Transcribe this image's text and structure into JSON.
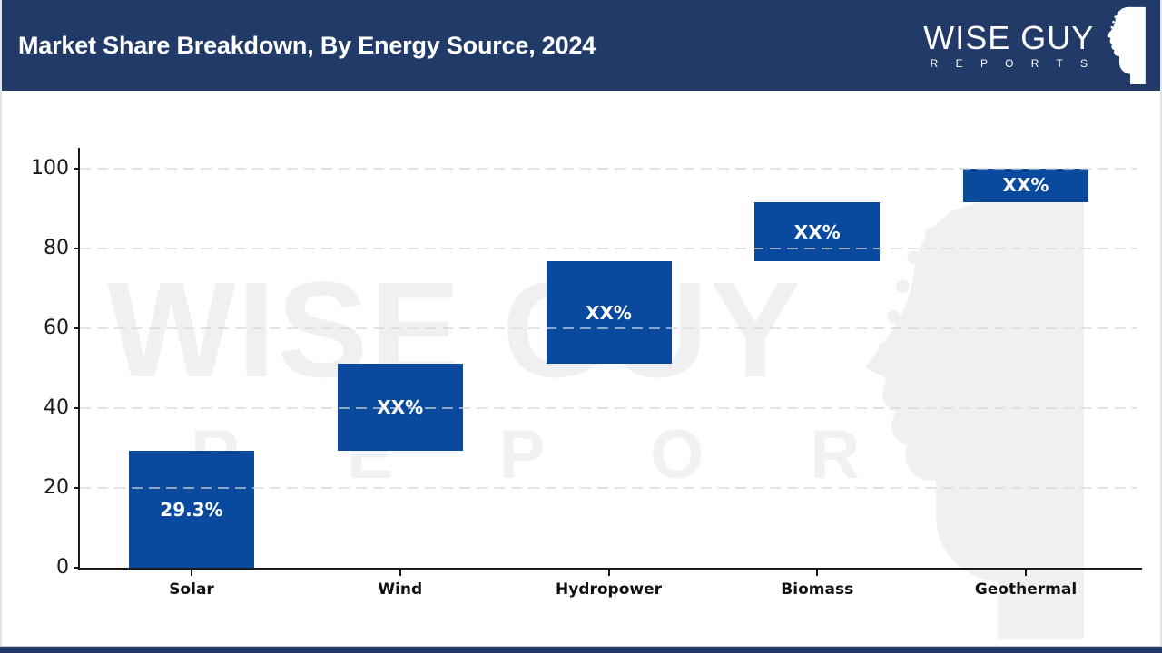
{
  "header": {
    "title": "Market Share Breakdown, By Energy Source, 2024",
    "logo": {
      "wordmark": "WISE GUY",
      "subtext": "R E P O R T S"
    }
  },
  "watermark": {
    "line1": "WISE GUY",
    "line2": "R E P O R T S"
  },
  "colors": {
    "header_bg": "#223A67",
    "footer_bg": "#223A67",
    "bar": "#094A9E",
    "bar_label": "#FFFFFF",
    "axis_text": "#1A1A1A",
    "grid": "#E3E3E6",
    "watermark": "#F0F0F2"
  },
  "chart_data": {
    "type": "bar",
    "subtype": "waterfall",
    "title": "Market Share Breakdown, By Energy Source, 2024",
    "categories": [
      "Solar",
      "Wind",
      "Hydropower",
      "Biomass",
      "Geothermal"
    ],
    "segments": [
      {
        "category": "Solar",
        "start": 0,
        "end": 29.3,
        "label": "29.3%"
      },
      {
        "category": "Wind",
        "start": 29.3,
        "end": 51.1,
        "label": "XX%"
      },
      {
        "category": "Hydropower",
        "start": 51.1,
        "end": 76.8,
        "label": "XX%"
      },
      {
        "category": "Biomass",
        "start": 76.8,
        "end": 91.6,
        "label": "XX%"
      },
      {
        "category": "Geothermal",
        "start": 91.6,
        "end": 100,
        "label": "XX%"
      }
    ],
    "yticks": [
      0,
      20,
      40,
      60,
      80,
      100
    ],
    "ylim": [
      0,
      105
    ],
    "xlabel": "",
    "ylabel": "",
    "grid": "horizontal-dashed",
    "legend": "none"
  }
}
